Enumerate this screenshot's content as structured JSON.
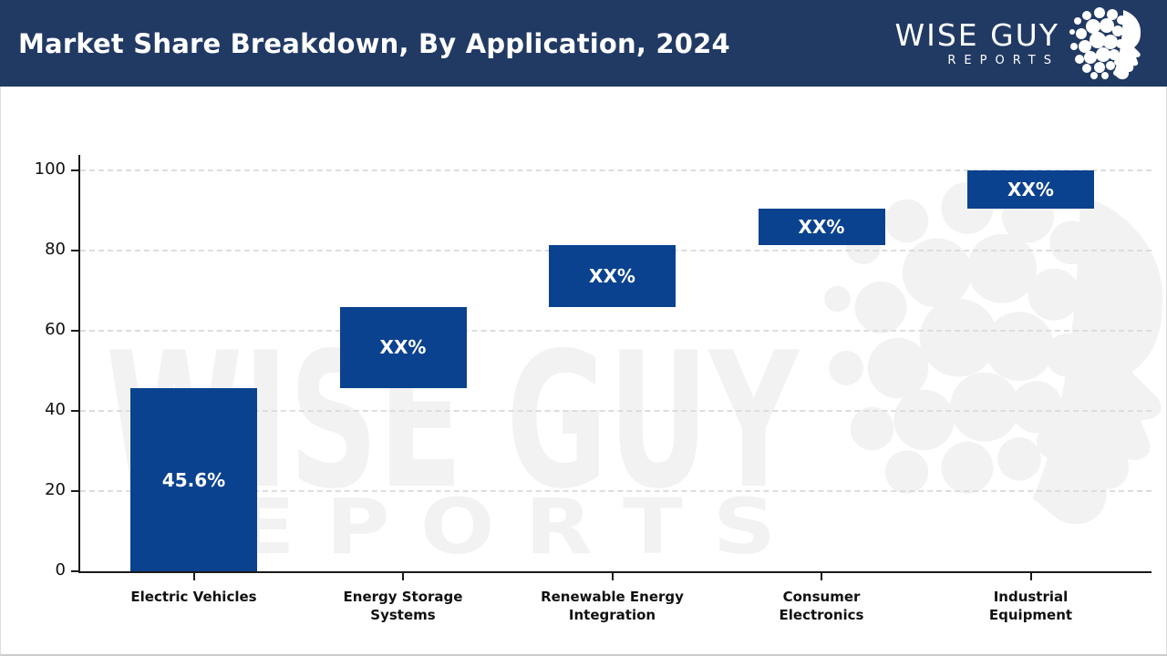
{
  "header": {
    "title": "Market Share Breakdown, By Application, 2024",
    "background_color": "#213A63",
    "logo": {
      "line1": "WISE GUY",
      "line2": "REPORTS"
    }
  },
  "watermark": {
    "line1": "WISE GUY",
    "line2": "REPORTS"
  },
  "chart_data": {
    "type": "bar",
    "variant": "waterfall",
    "title": "Market Share Breakdown, By Application, 2024",
    "categories": [
      "Electric Vehicles",
      "Energy Storage Systems",
      "Renewable Energy Integration",
      "Consumer Electronics",
      "Industrial Equipment"
    ],
    "category_label_lines": [
      [
        "Electric Vehicles"
      ],
      [
        "Energy Storage",
        "Systems"
      ],
      [
        "Renewable Energy",
        "Integration"
      ],
      [
        "Consumer",
        "Electronics"
      ],
      [
        "Industrial",
        "Equipment"
      ]
    ],
    "segments": [
      {
        "category": "Electric Vehicles",
        "start": 0,
        "end": 45.6,
        "label": "45.6%"
      },
      {
        "category": "Energy Storage Systems",
        "start": 45.6,
        "end": 66,
        "label": "XX%"
      },
      {
        "category": "Renewable Energy Integration",
        "start": 66,
        "end": 81.4,
        "label": "XX%"
      },
      {
        "category": "Consumer Electronics",
        "start": 81.4,
        "end": 90.5,
        "label": "XX%"
      },
      {
        "category": "Industrial Equipment",
        "start": 90.5,
        "end": 100,
        "label": "XX%"
      }
    ],
    "xlabel": "",
    "ylabel": "",
    "ylim": [
      0,
      100
    ],
    "yticks": [
      0,
      20,
      40,
      60,
      80,
      100
    ],
    "grid": {
      "horizontal": true,
      "style": "dashed",
      "color": "#DDDDDD"
    },
    "colors": {
      "bar": "#0A428F",
      "bar_label": "#FFFFFF",
      "axis": "#1A1A1A",
      "tick_label": "#111111"
    }
  }
}
